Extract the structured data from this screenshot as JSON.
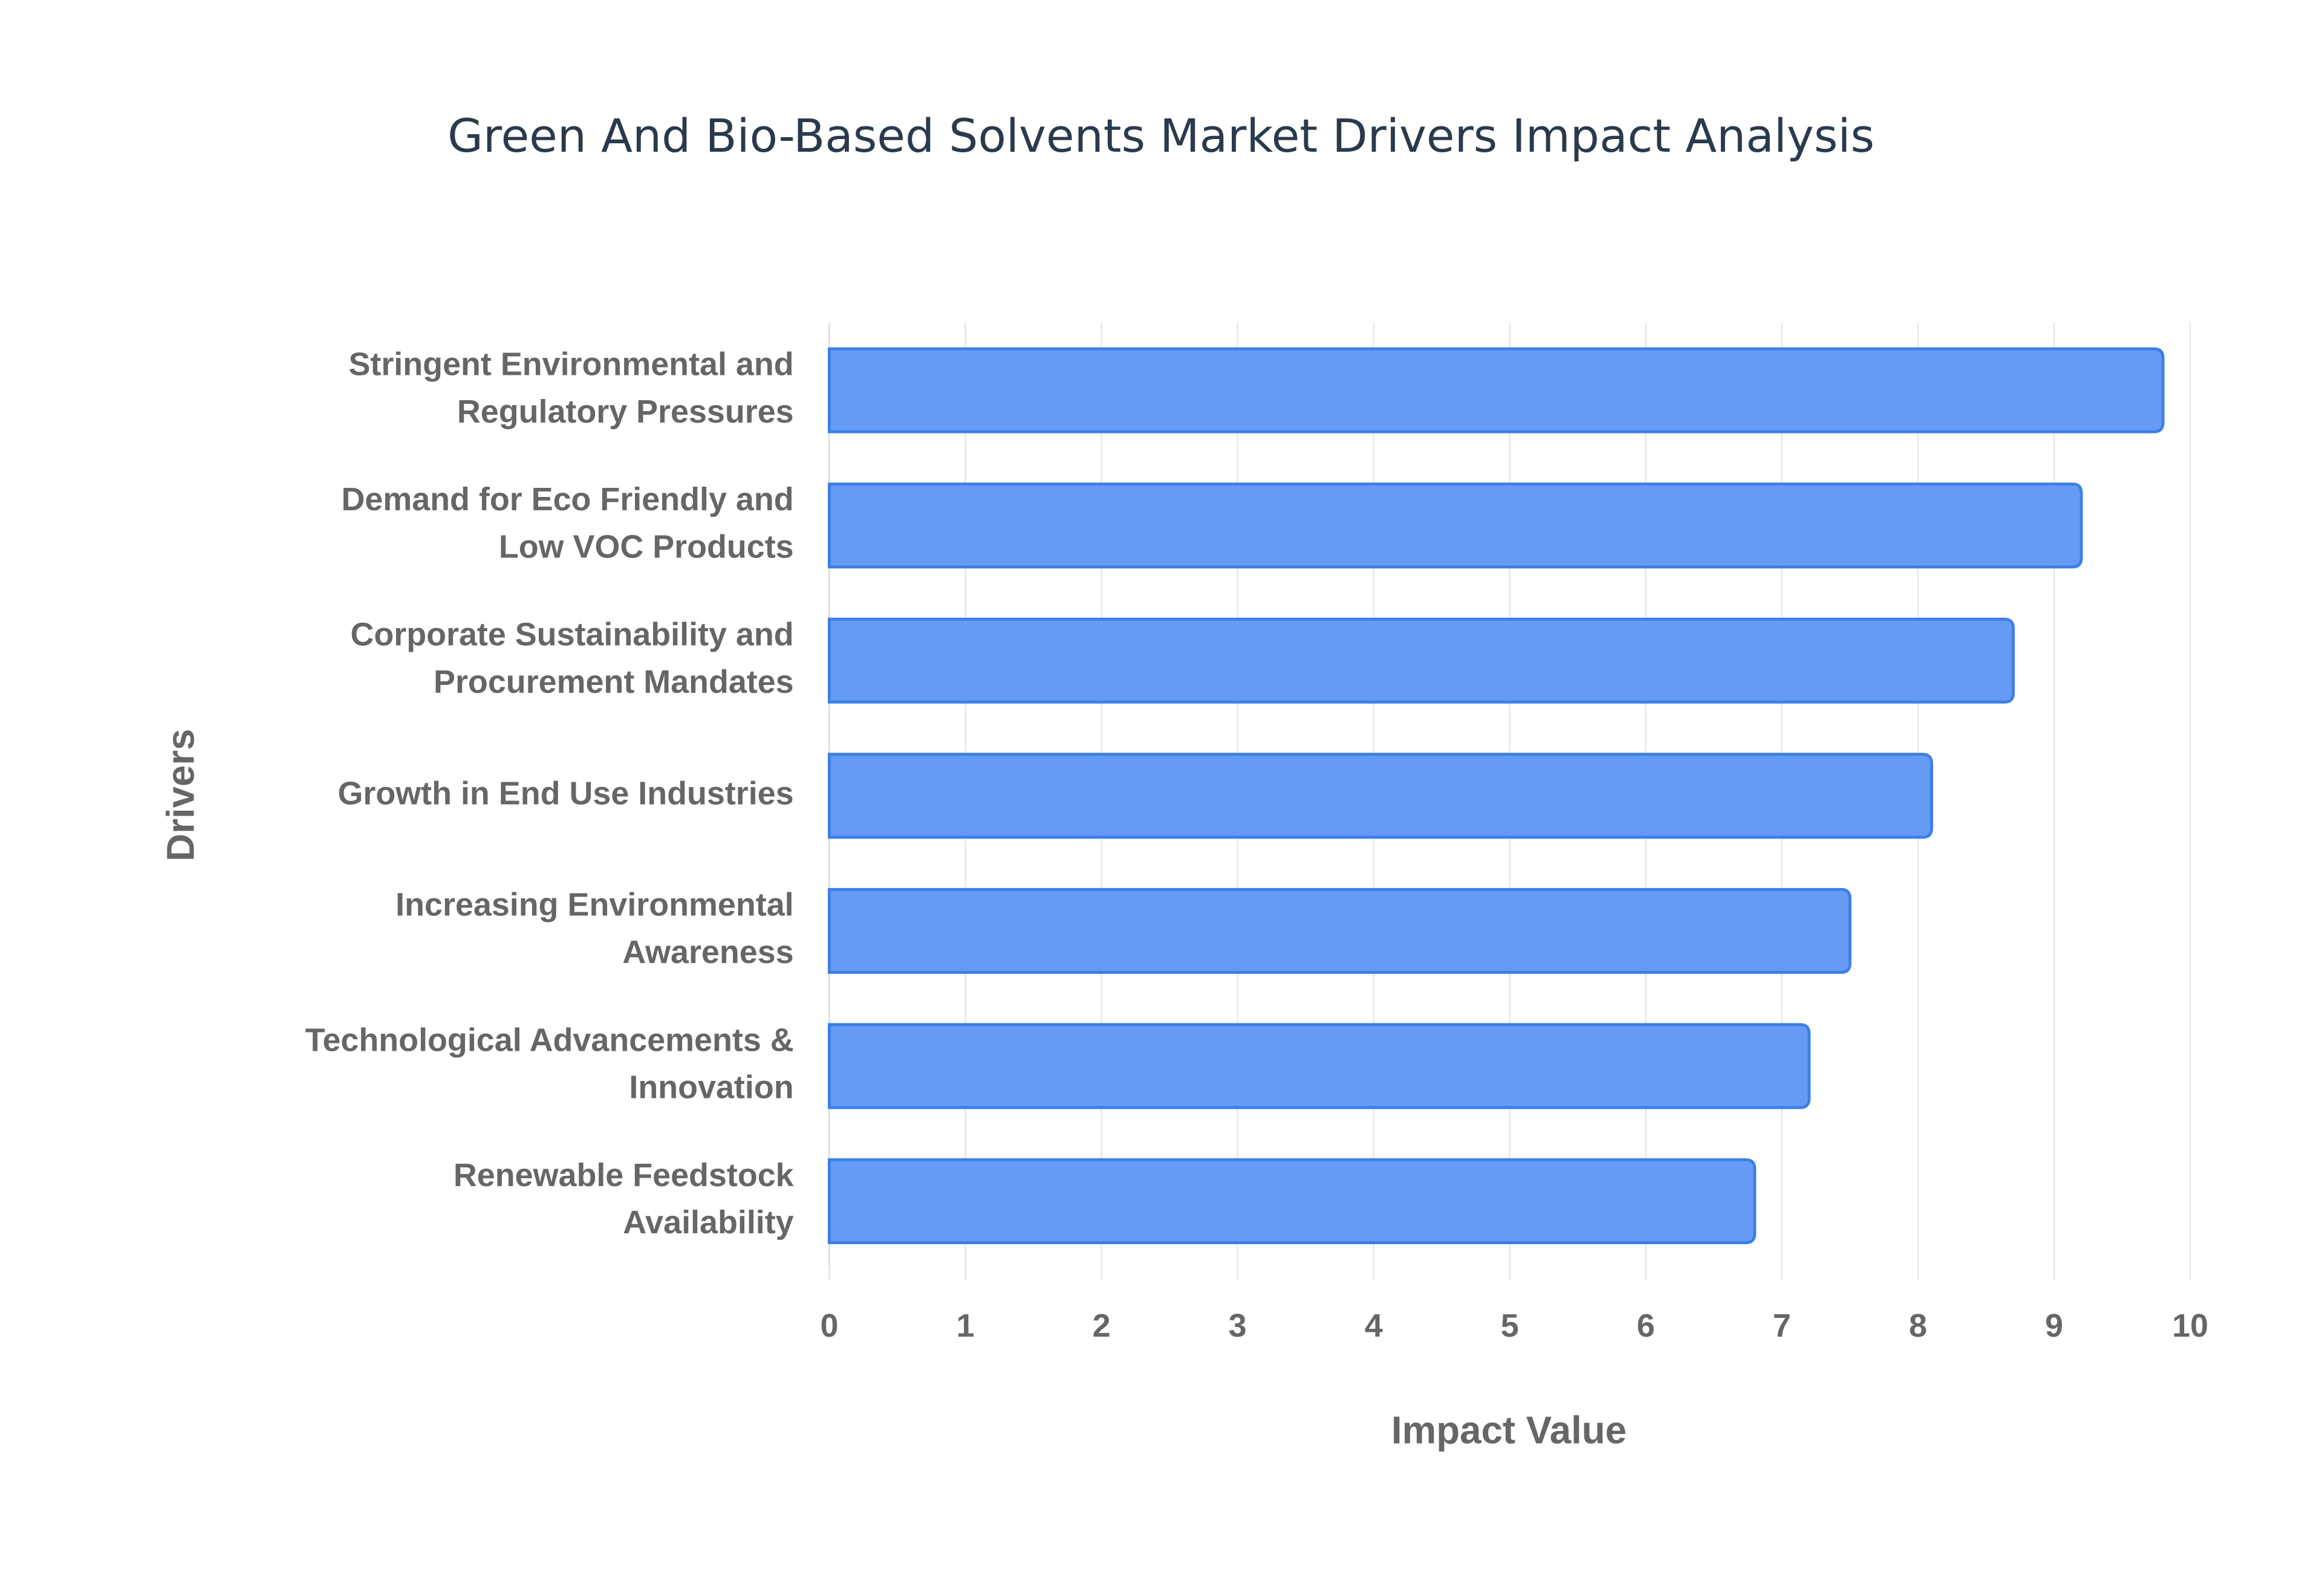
{
  "chart_data": {
    "type": "bar",
    "orientation": "horizontal",
    "title": "Green And Bio-Based Solvents Market Drivers Impact Analysis",
    "x_label": "Impact Value",
    "y_label": "Drivers",
    "categories": [
      "Stringent Environmental and Regulatory Pressures",
      "Demand for Eco Friendly and Low VOC Products",
      "Corporate Sustainability and Procurement Mandates",
      "Growth in End Use Industries",
      "Increasing Environmental Awareness",
      "Technological Advancements & Innovation",
      "Renewable Feedstock Availability"
    ],
    "values": [
      9.8,
      9.2,
      8.7,
      8.1,
      7.5,
      7.2,
      6.8
    ],
    "color": "#6198f5",
    "xlim": [
      0,
      10
    ],
    "xticks": [
      0,
      1,
      2,
      3,
      4,
      5,
      6,
      7,
      8,
      9,
      10
    ],
    "grid": true
  }
}
